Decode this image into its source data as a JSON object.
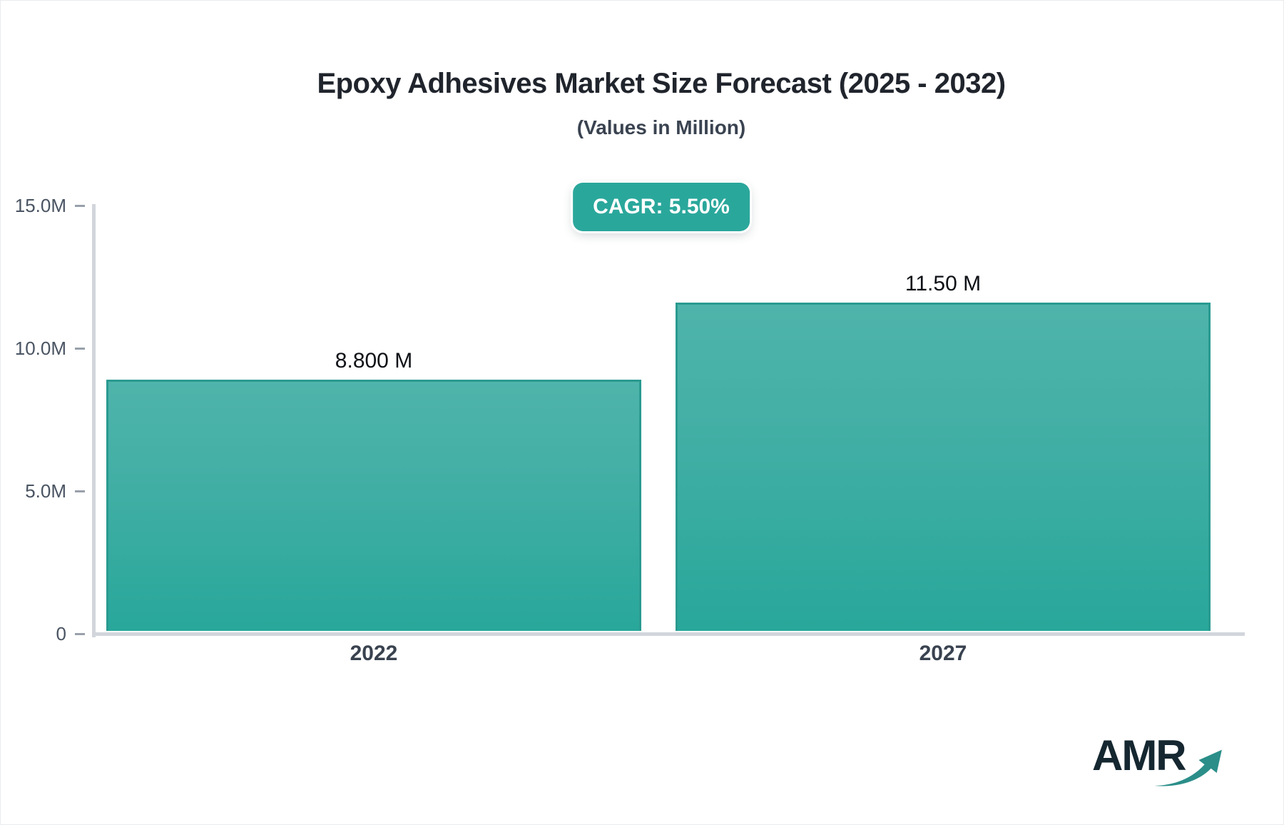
{
  "header": {
    "title": "Epoxy Adhesives Market Size Forecast (2025 - 2032)",
    "subtitle": "(Values in Million)",
    "cagr_label": "CAGR: 5.50%"
  },
  "chart_data": {
    "type": "bar",
    "title": "Epoxy Adhesives Market Size Forecast (2025 - 2032)",
    "subtitle": "(Values in Million)",
    "unit": "Million",
    "cagr_pct": 5.5,
    "categories": [
      "2022",
      "2027"
    ],
    "values": [
      8.8,
      11.5
    ],
    "value_labels": [
      "8.800 M",
      "11.50 M"
    ],
    "ylim": [
      0,
      15
    ],
    "y_ticks": [
      {
        "value": 15,
        "label": "15.0M"
      },
      {
        "value": 10,
        "label": "10.0M"
      },
      {
        "value": 5,
        "label": "5.0M"
      },
      {
        "value": 0,
        "label": "0"
      }
    ],
    "grid": false,
    "legend": false
  },
  "colors": {
    "accent_teal": "#2aa79b",
    "bar_gradient_top": "#4fb4ab",
    "bar_gradient_bottom": "#28a79a",
    "bar_border": "#2a9a90",
    "axis_line": "#d2d6dc",
    "title_text": "#20242c",
    "axis_label_text": "#4a5462",
    "logo_text": "#152730",
    "logo_arrow": "#2b8e89"
  },
  "logo": {
    "text": "AMR"
  }
}
